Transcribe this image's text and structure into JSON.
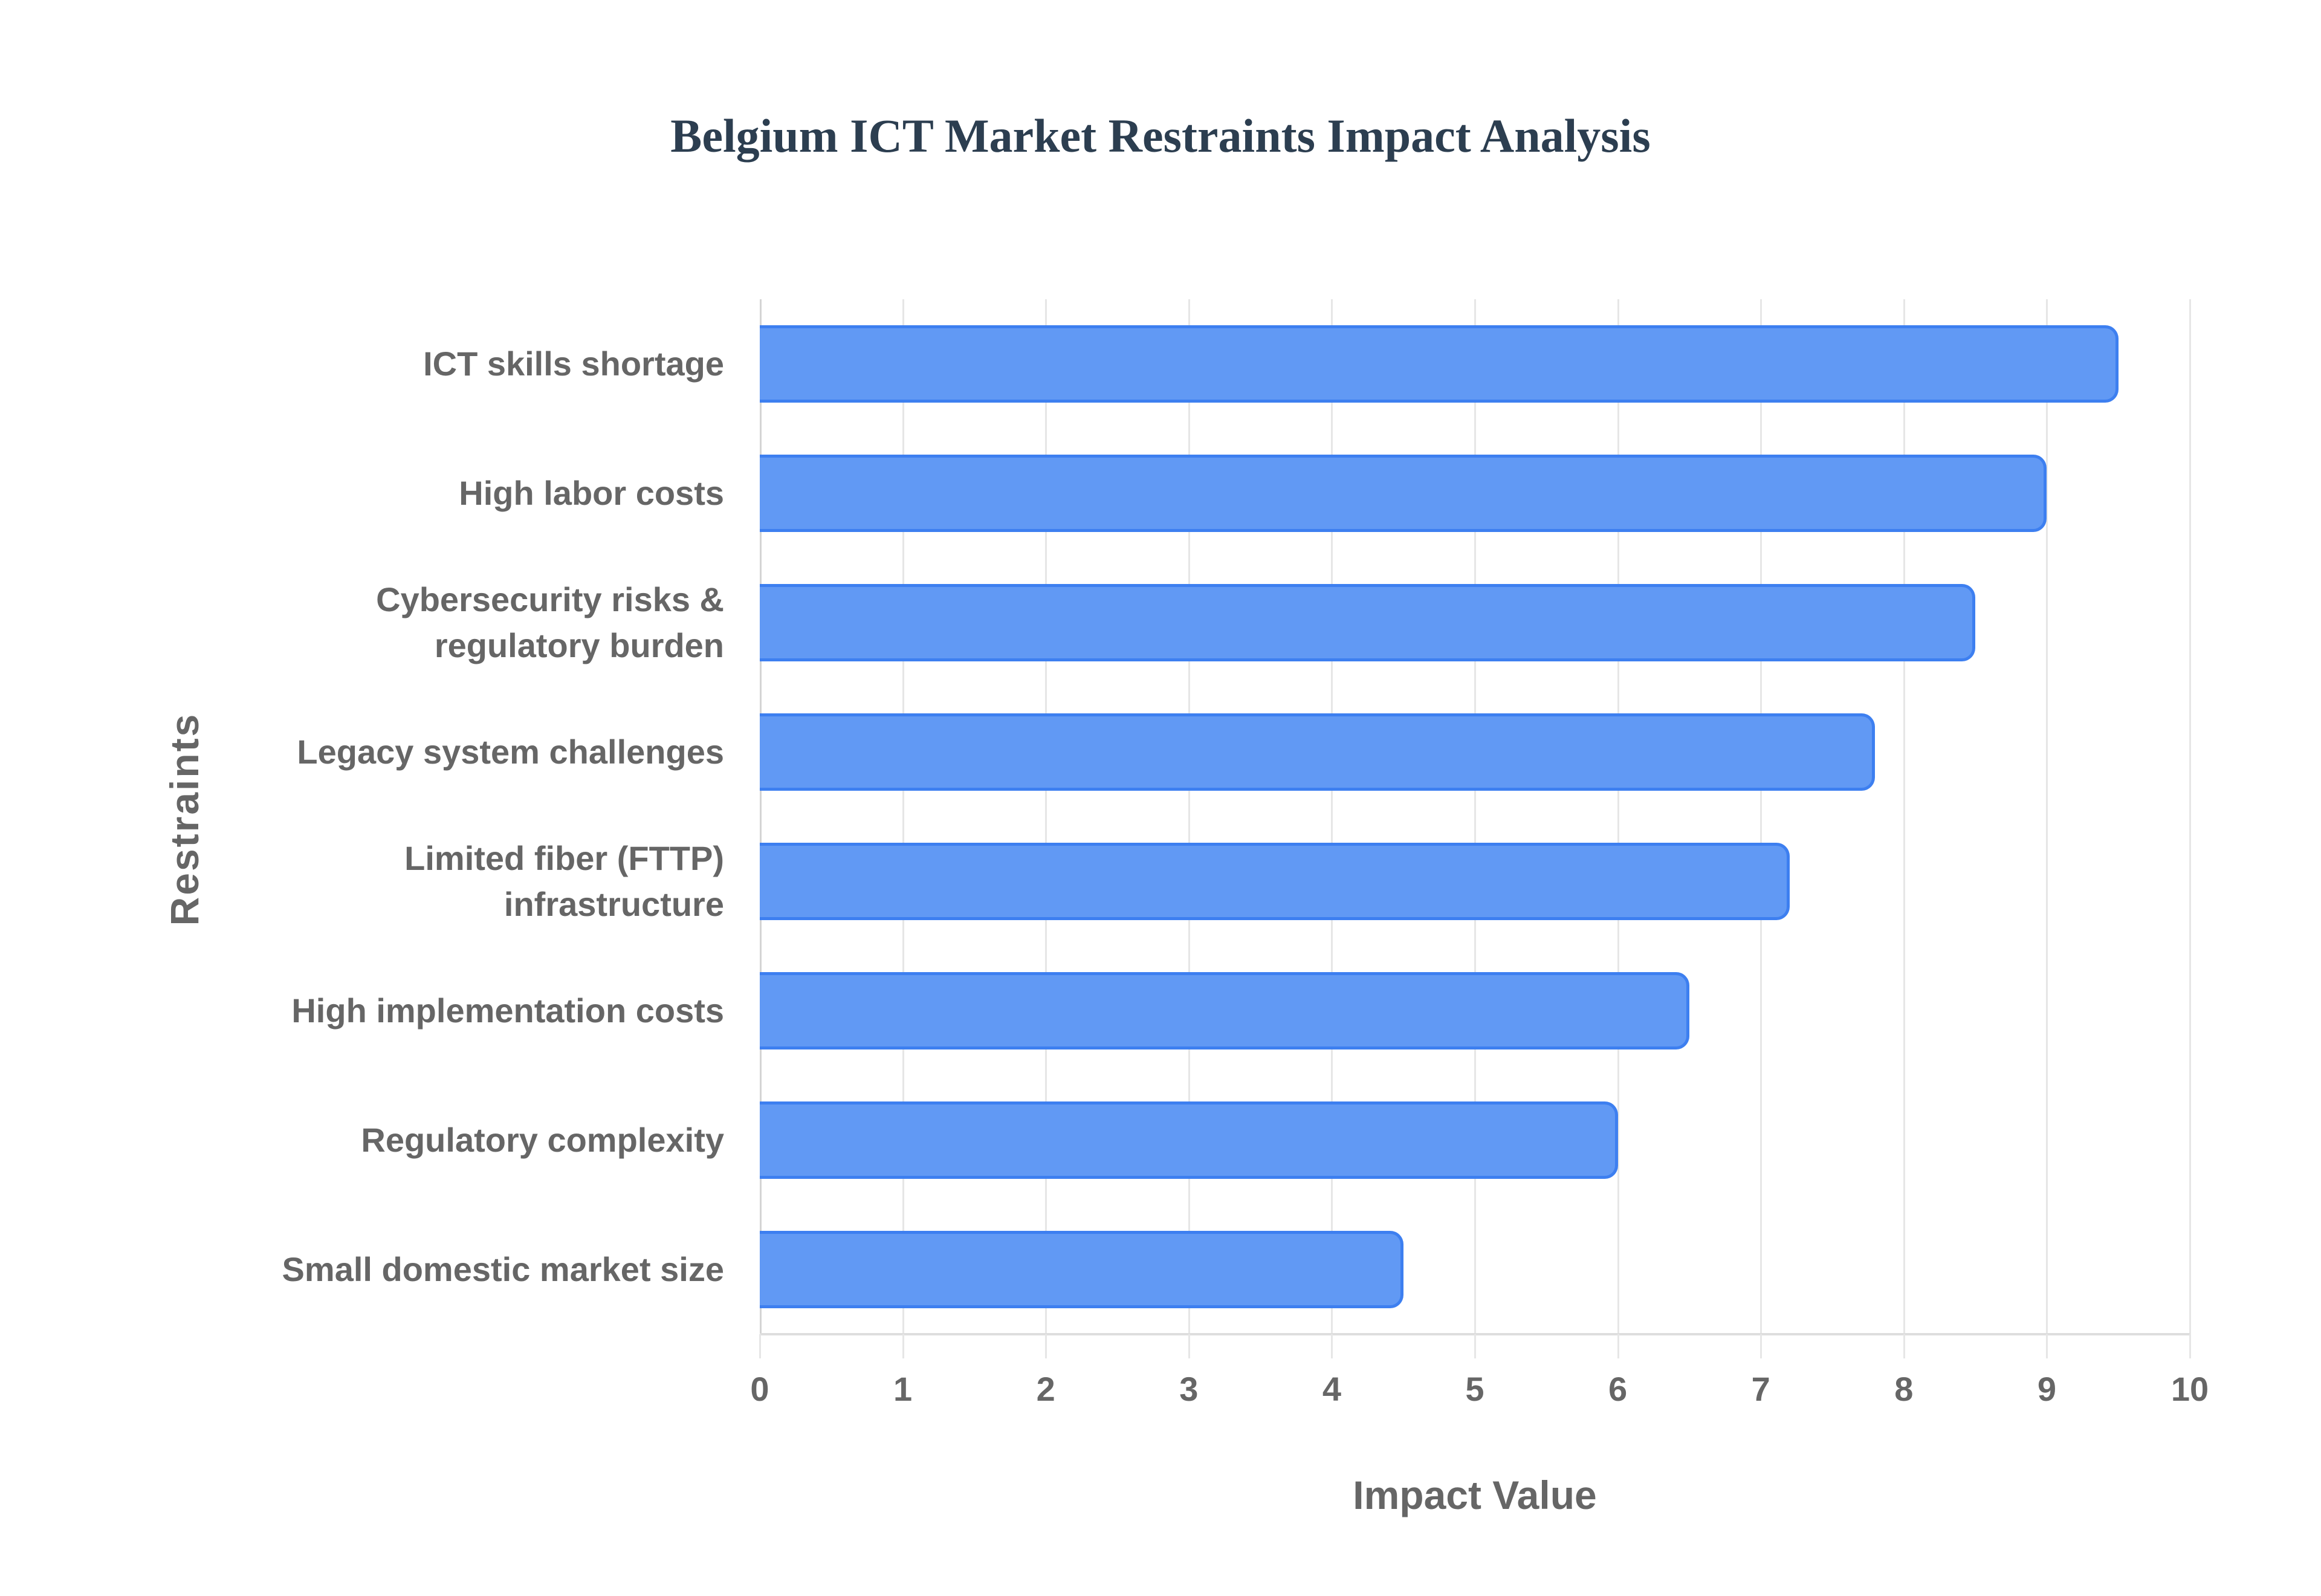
{
  "chart_data": {
    "type": "bar",
    "orientation": "horizontal",
    "title": "Belgium ICT Market Restraints Impact Analysis",
    "xlabel": "Impact Value",
    "ylabel": "Restraints",
    "xlim": [
      0,
      10
    ],
    "x_ticks": [
      "0",
      "1",
      "2",
      "3",
      "4",
      "5",
      "6",
      "7",
      "8",
      "9",
      "10"
    ],
    "grid": true,
    "legend": null,
    "categories": [
      "ICT skills shortage",
      "High labor costs",
      "Cybersecurity risks & regulatory burden",
      "Legacy system challenges",
      "Limited fiber (FTTP) infrastructure",
      "High implementation costs",
      "Regulatory complexity",
      "Small domestic market size"
    ],
    "category_display": [
      "ICT skills shortage",
      "High labor costs",
      "Cybersecurity risks &\nregulatory burden",
      "Legacy system challenges",
      "Limited fiber (FTTP)\ninfrastructure",
      "High implementation costs",
      "Regulatory complexity",
      "Small domestic market size"
    ],
    "values": [
      9.5,
      9.0,
      8.5,
      7.8,
      7.2,
      6.5,
      6.0,
      4.5
    ],
    "colors": {
      "bar_fill": "#6199f4",
      "bar_border": "#3d7ff0",
      "title": "#2c3e50",
      "axis_text": "#666666",
      "grid": "#e6e6e6"
    }
  }
}
